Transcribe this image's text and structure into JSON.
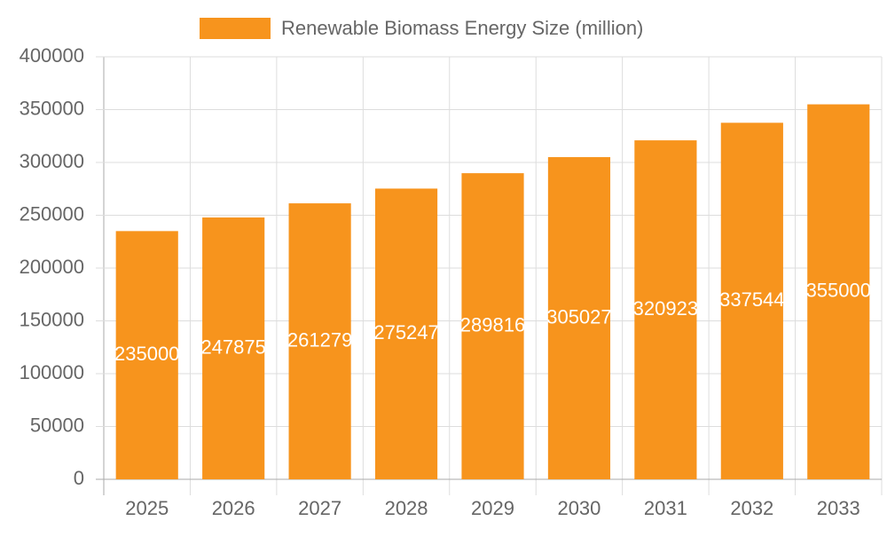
{
  "chart_data": {
    "type": "bar",
    "categories": [
      "2025",
      "2026",
      "2027",
      "2028",
      "2029",
      "2030",
      "2031",
      "2032",
      "2033"
    ],
    "series": [
      {
        "name": "Renewable Biomass Energy Size (million)",
        "color": "#f7941d",
        "values": [
          235000,
          247875,
          261279,
          275247,
          289816,
          305027,
          320923,
          337544,
          355000
        ]
      }
    ],
    "ylim": [
      0,
      400000
    ],
    "yticks": [
      0,
      50000,
      100000,
      150000,
      200000,
      250000,
      300000,
      350000,
      400000
    ],
    "grid": true,
    "legend": "top",
    "data_labels": true
  }
}
